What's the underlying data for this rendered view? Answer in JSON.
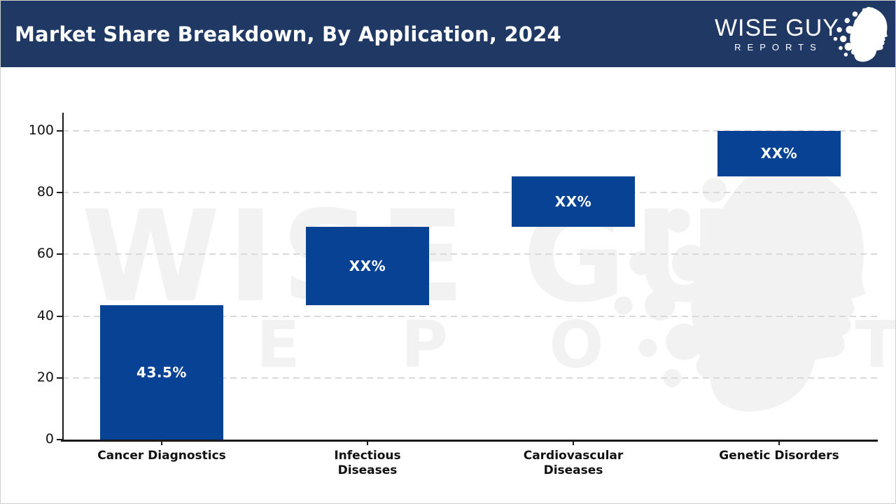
{
  "header": {
    "title": "Market Share Breakdown, By Application, 2024",
    "logo": {
      "name": "WISE GUY",
      "sub": "REPORTS"
    }
  },
  "watermark": {
    "line1": "WISE GUY",
    "line2": "R E P O R T S"
  },
  "chart_data": {
    "type": "bar",
    "style": "waterfall-floating-bars",
    "title": "Market Share Breakdown, By Application, 2024",
    "categories": [
      "Cancer Diagnostics",
      "Infectious\nDiseases",
      "Cardiovascular\nDiseases",
      "Genetic Disorders"
    ],
    "segments": [
      {
        "category": "Cancer Diagnostics",
        "start": 0,
        "end": 43.5,
        "label": "43.5%"
      },
      {
        "category": "Infectious Diseases",
        "start": 43.5,
        "end": 69,
        "label": "XX%"
      },
      {
        "category": "Cardiovascular Diseases",
        "start": 69,
        "end": 85.3,
        "label": "XX%"
      },
      {
        "category": "Genetic Disorders",
        "start": 85.3,
        "end": 100,
        "label": "XX%"
      }
    ],
    "yticks": [
      0,
      20,
      40,
      60,
      80,
      100
    ],
    "ylim": [
      0,
      100
    ],
    "xlabel": "",
    "ylabel": "",
    "legend": "none",
    "grid": "horizontal-dashed",
    "colors": {
      "bar": "#084294",
      "bar_label": "#ffffff",
      "header_bg": "#1f3864",
      "axis": "#1a1a1a",
      "grid": "#d9d9d9",
      "watermark": "#f2f2f2"
    }
  }
}
